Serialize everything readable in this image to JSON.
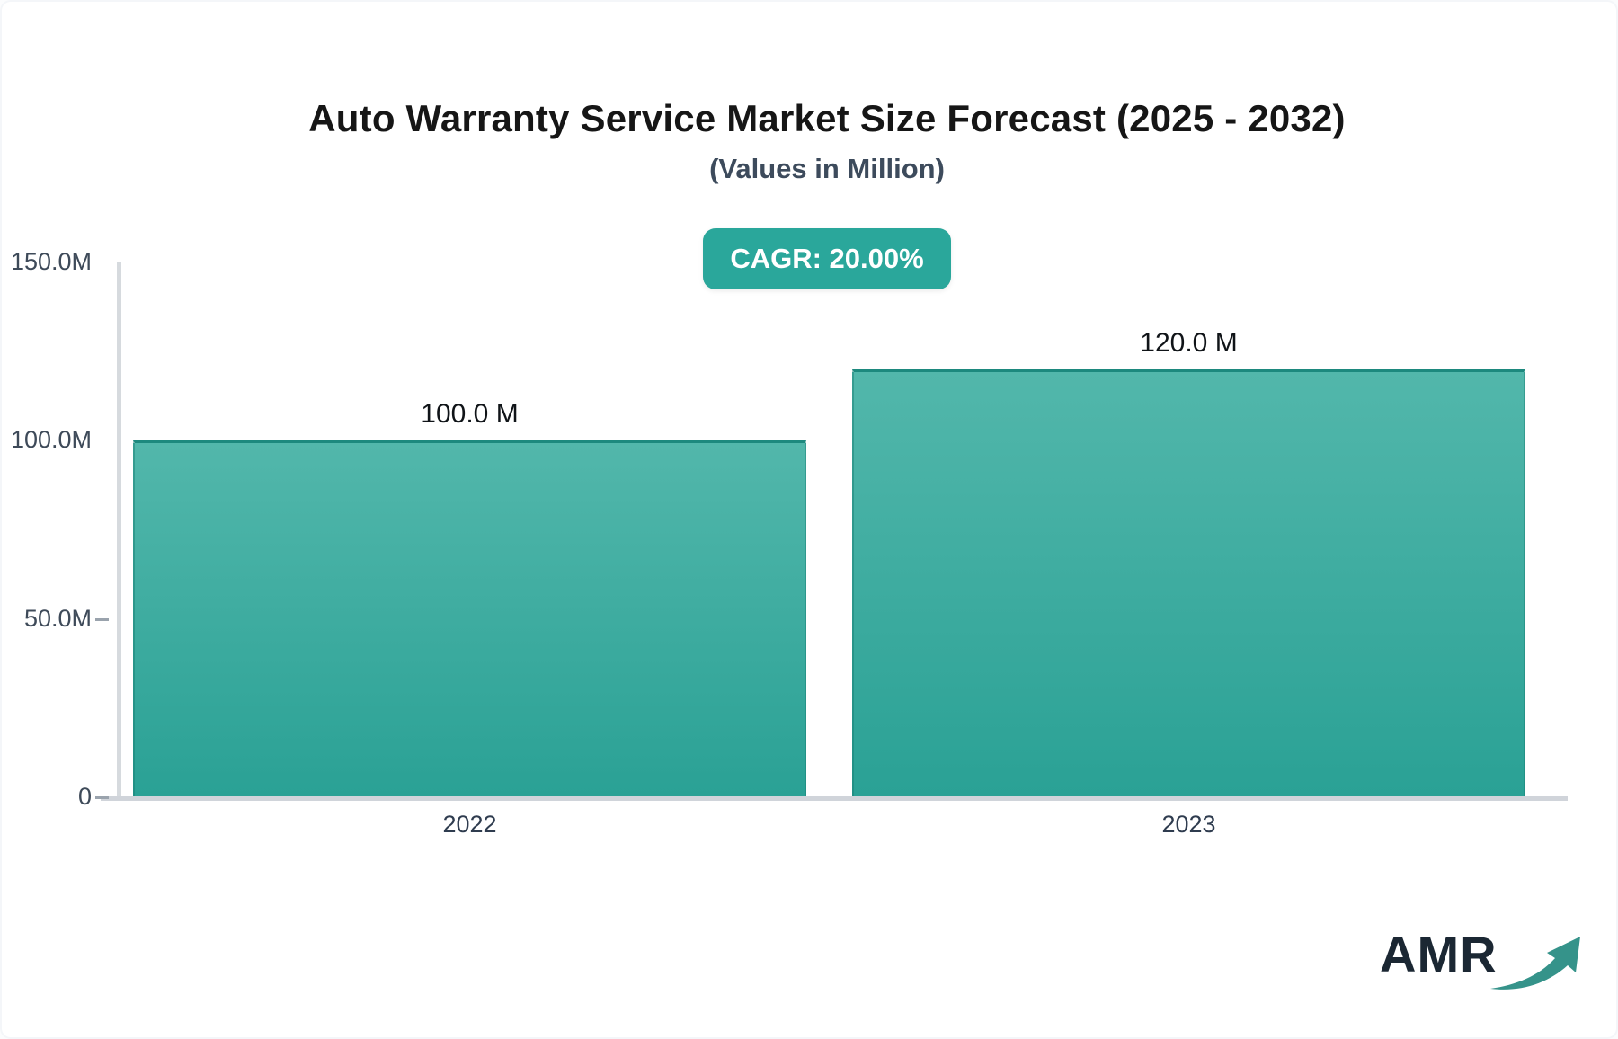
{
  "page": {
    "title": "Auto Warranty Service Market Size Forecast (2025 - 2032)",
    "subtitle": "(Values in Million)",
    "cagr_badge": "CAGR: 20.00%",
    "logo_text": "AMR",
    "colors": {
      "badge_bg": "#2aa79b",
      "bar_gradient_top": "#52b7ab",
      "bar_gradient_bottom": "#2aa195",
      "bar_border": "#1d897e",
      "axis_line": "#d6dade",
      "title_text": "#161616",
      "subtitle_text": "#3d4b5c",
      "tick_text": "#3e4a59",
      "x_label_text": "#2f3c4f",
      "data_label_text": "#101418",
      "logo_text": "#1b2733",
      "logo_arrow": "#35938a"
    }
  },
  "chart_data": {
    "type": "bar",
    "title": "Auto Warranty Service Market Size Forecast (2025 - 2032)",
    "subtitle": "(Values in Million)",
    "annotation": "CAGR: 20.00%",
    "unit": "Million",
    "categories": [
      "2022",
      "2023"
    ],
    "values": [
      100,
      120
    ],
    "bar_labels": [
      "100.0 M",
      "120.0 M"
    ],
    "ylim": [
      0,
      150
    ],
    "yticks": [
      {
        "label": "150.0M",
        "value": 150,
        "dash": false
      },
      {
        "label": "100.0M",
        "value": 100,
        "dash": false
      },
      {
        "label": "50.0M",
        "value": 50,
        "dash": true
      },
      {
        "label": "0",
        "value": 0,
        "dash": true
      }
    ],
    "grid": false,
    "legend": false,
    "xlabel": "",
    "ylabel": ""
  }
}
